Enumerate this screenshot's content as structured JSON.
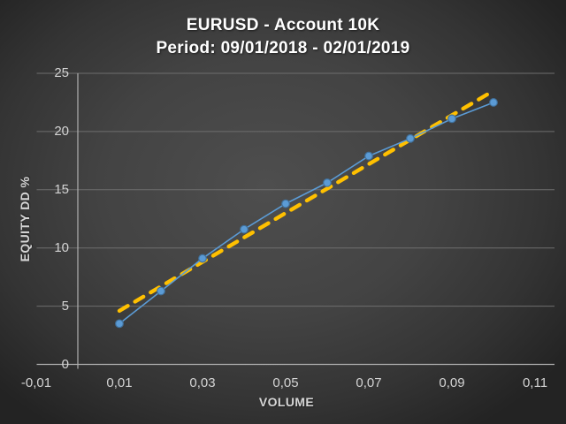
{
  "header": {
    "title_line1": "EURUSD - Account 10K",
    "title_line2": "Period: 09/01/2018 - 02/01/2019"
  },
  "chart_data": {
    "type": "line",
    "title": "EURUSD - Account 10K",
    "subtitle": "Period: 09/01/2018 - 02/01/2019",
    "xlabel": "VOLUME",
    "ylabel": "EQUITY DD %",
    "xlim": [
      -0.01,
      0.11
    ],
    "ylim": [
      0,
      25
    ],
    "grid": true,
    "legend": false,
    "decimal_separator": ",",
    "x_ticks": [
      {
        "value": -0.01,
        "label": "-0,01"
      },
      {
        "value": 0.01,
        "label": "0,01"
      },
      {
        "value": 0.03,
        "label": "0,03"
      },
      {
        "value": 0.05,
        "label": "0,05"
      },
      {
        "value": 0.07,
        "label": "0,07"
      },
      {
        "value": 0.09,
        "label": "0,09"
      },
      {
        "value": 0.11,
        "label": "0,11"
      }
    ],
    "y_ticks": [
      {
        "value": 0,
        "label": "0"
      },
      {
        "value": 5,
        "label": "5"
      },
      {
        "value": 10,
        "label": "10"
      },
      {
        "value": 15,
        "label": "15"
      },
      {
        "value": 20,
        "label": "20"
      },
      {
        "value": 25,
        "label": "25"
      }
    ],
    "series": [
      {
        "name": "equity-dd-percent",
        "color": "#5B9BD5",
        "marker_fill": "#5B9BD5",
        "marker_border": "#41719C",
        "x": [
          0.01,
          0.02,
          0.03,
          0.04,
          0.05,
          0.06,
          0.07,
          0.08,
          0.09,
          0.1
        ],
        "y": [
          3.5,
          6.3,
          9.1,
          11.6,
          13.8,
          15.6,
          17.9,
          19.4,
          21.1,
          22.5
        ]
      }
    ],
    "trendline": {
      "name": "linear-trendline",
      "style": "dashed",
      "color": "#FFC000",
      "x": [
        0.01,
        0.1
      ],
      "y": [
        4.6,
        23.5
      ]
    }
  },
  "colors": {
    "background_center": "#4e4e4e",
    "background_edge": "#232323",
    "title_text": "#ffffff",
    "axis_line": "#b0b0b0",
    "gridline": "#6e6e6e",
    "tick_text": "#d4d4d4",
    "axis_title_text": "#d6d6d6",
    "series_blue": "#5B9BD5",
    "trendline_gold": "#FFC000"
  }
}
